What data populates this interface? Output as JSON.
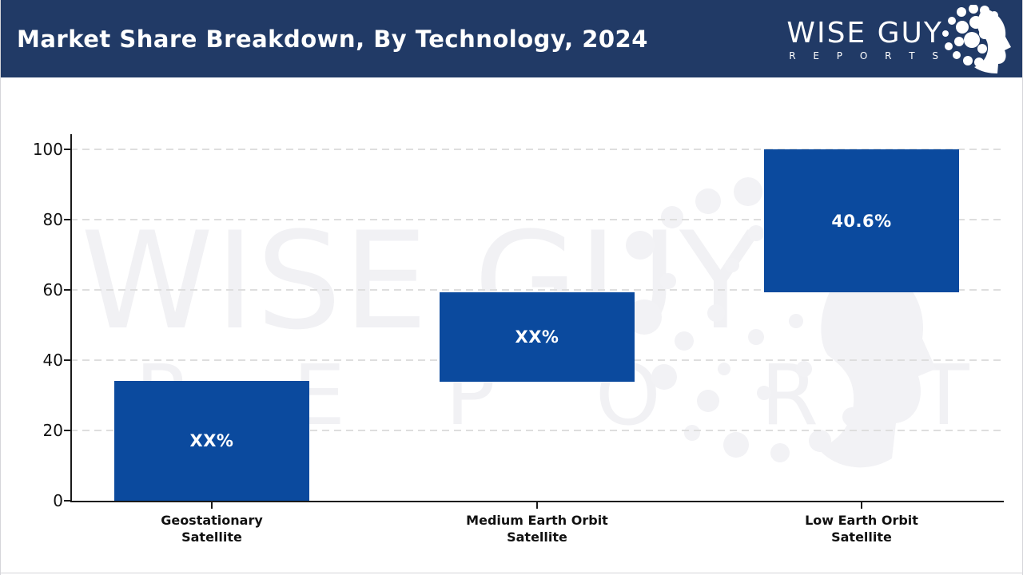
{
  "header": {
    "title": "Market Share Breakdown, By Technology, 2024",
    "logo": {
      "wordmark": "WISE GUY",
      "subtext": "R E P O R T S"
    }
  },
  "watermark": {
    "wordmark": "WISE GUY",
    "subtext": "R E P O R T S"
  },
  "colors": {
    "header_bg": "#213a66",
    "bar": "#0b4a9e",
    "bar_label": "#ffffff",
    "axis": "#1a1a1a",
    "grid": "#dedede",
    "watermark": "#f1f1f4",
    "title_text": "#ffffff"
  },
  "chart_data": {
    "type": "bar",
    "variant": "stacked-waterfall-segments",
    "title": "Market Share Breakdown, By Technology, 2024",
    "categories": [
      "Geostationary\nSatellite",
      "Medium Earth Orbit\nSatellite",
      "Low Earth Orbit\nSatellite"
    ],
    "segments": [
      {
        "category": "Geostationary Satellite",
        "start": 0,
        "end": 34.0,
        "value": 34.0,
        "label": "XX%"
      },
      {
        "category": "Medium Earth Orbit Satellite",
        "start": 34.0,
        "end": 59.4,
        "value": 25.4,
        "label": "XX%"
      },
      {
        "category": "Low Earth Orbit Satellite",
        "start": 59.4,
        "end": 100,
        "value": 40.6,
        "label": "40.6%"
      }
    ],
    "yticks": [
      0,
      20,
      40,
      60,
      80,
      100
    ],
    "ylim": [
      0,
      104
    ],
    "xlabel": "",
    "ylabel": "",
    "grid": "horizontal-dashed",
    "legend": null
  }
}
